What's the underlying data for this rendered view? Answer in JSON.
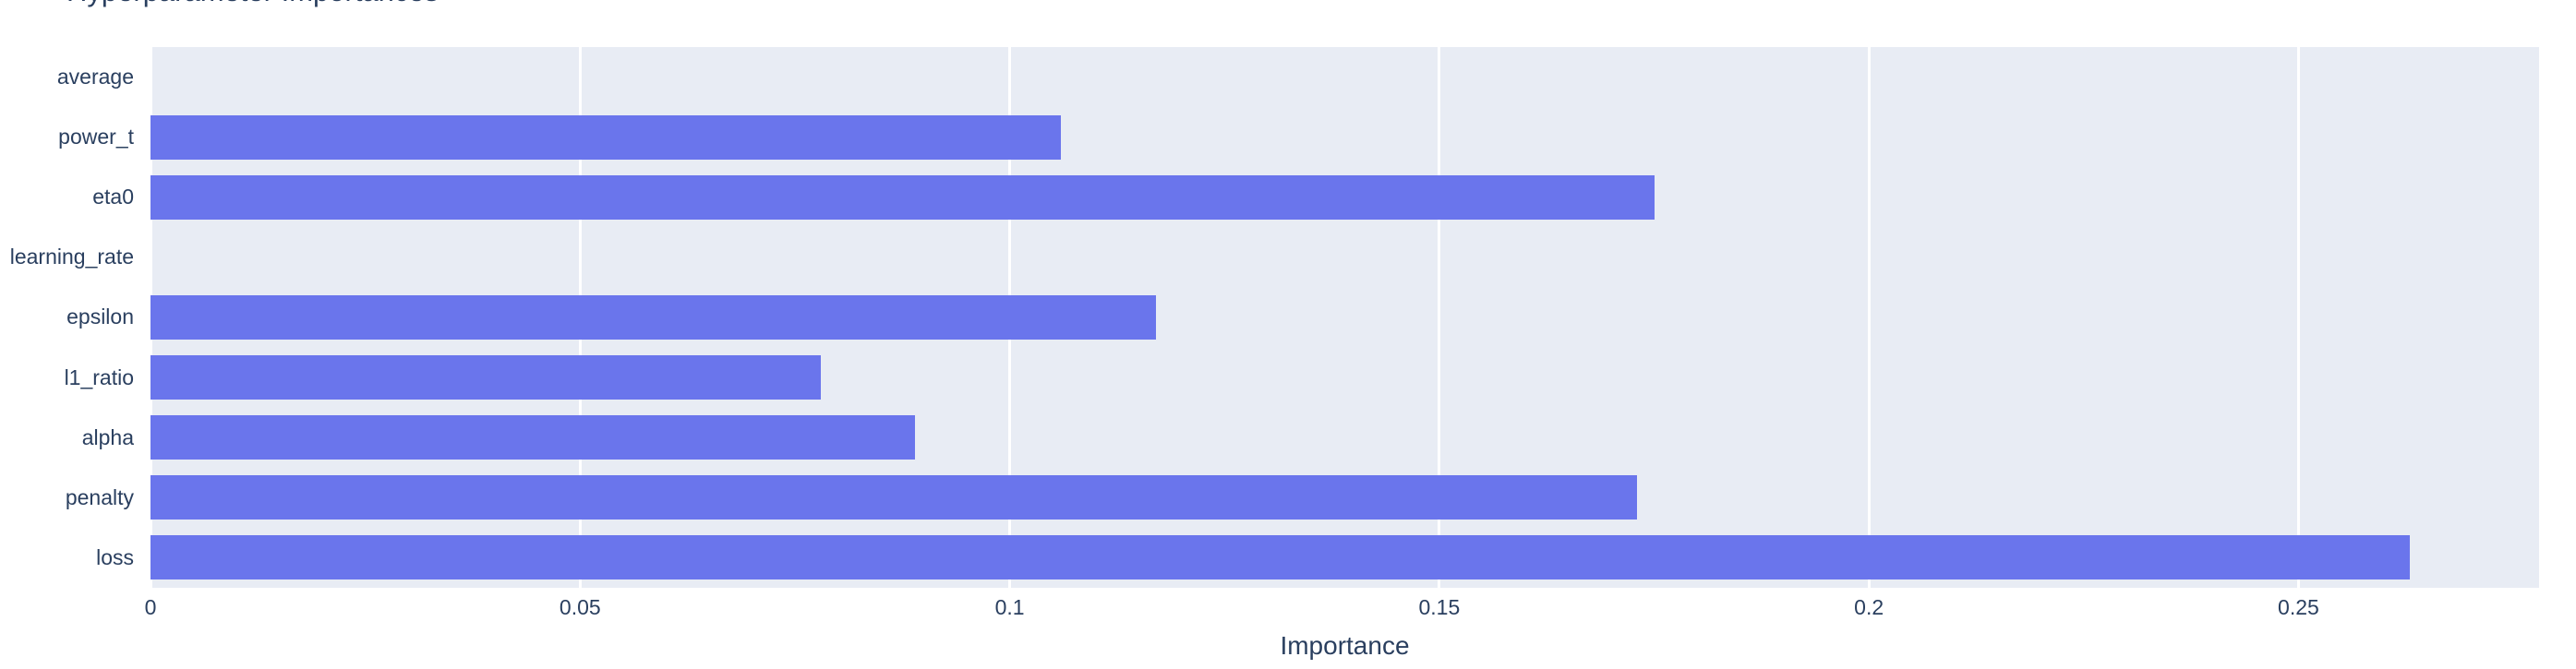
{
  "chart_data": {
    "type": "bar",
    "orientation": "horizontal",
    "title": "Hyperparameter Importances",
    "title_note": "title is clipped at the top edge of the screenshot; only the bottom sliver of the text is visible",
    "xlabel": "Importance",
    "ylabel": "",
    "categories": [
      "average",
      "power_t",
      "eta0",
      "learning_rate",
      "epsilon",
      "l1_ratio",
      "alpha",
      "penalty",
      "loss"
    ],
    "categories_order": "top_to_bottom",
    "values": [
      0,
      0.106,
      0.175,
      0,
      0.117,
      0.078,
      0.089,
      0.173,
      0.263
    ],
    "xlim": [
      0,
      0.278
    ],
    "xticks": [
      0,
      0.05,
      0.1,
      0.15,
      0.2,
      0.25
    ],
    "xtick_labels": [
      "0",
      "0.05",
      "0.1",
      "0.15",
      "0.2",
      "0.25"
    ],
    "grid": true,
    "legend": "none",
    "colors": {
      "bar": "#6a75ec",
      "plot_bg": "#e8ecf4",
      "grid_line": "#ffffff",
      "text": "#2a3f5f",
      "page_bg": "#ffffff"
    }
  }
}
